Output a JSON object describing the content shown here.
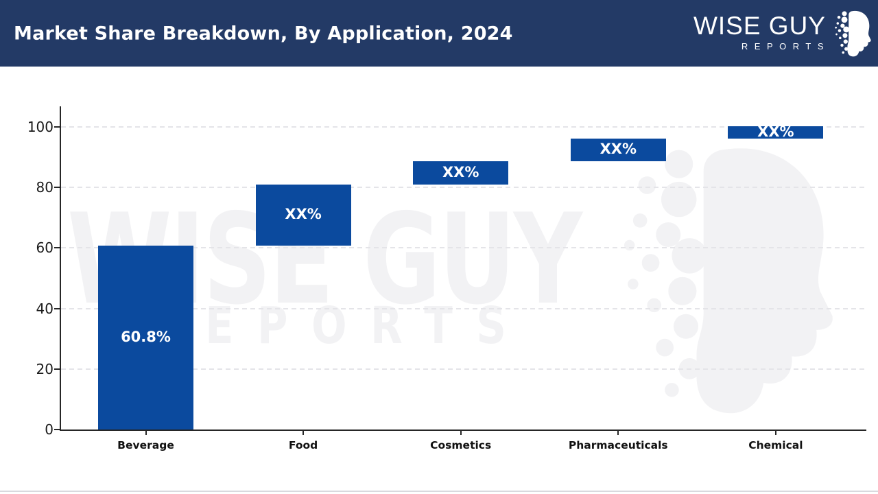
{
  "header": {
    "title": "Market Share Breakdown, By Application, 2024",
    "logo": {
      "line1": "WISE GUY",
      "line2": "REPORTS"
    }
  },
  "watermark": {
    "line1": "WISE GUY",
    "line2": "REPORTS"
  },
  "colors": {
    "header_bg": "#233a66",
    "bar": "#0b4a9e",
    "grid": "#e4e4e8",
    "axis": "#262626",
    "bar_label_text": "#ffffff",
    "tick_label_text": "#1a1a1a",
    "watermark": "#f2f2f4"
  },
  "chart_data": {
    "type": "bar",
    "subtype": "waterfall",
    "title": "Market Share Breakdown, By Application, 2024",
    "xlabel": "",
    "ylabel": "",
    "categories": [
      "Beverage",
      "Food",
      "Cosmetics",
      "Pharmaceuticals",
      "Chemical"
    ],
    "segments": [
      {
        "category": "Beverage",
        "start": 0,
        "end": 60.8,
        "label": "60.8%"
      },
      {
        "category": "Food",
        "start": 60.8,
        "end": 81.0,
        "label": "XX%"
      },
      {
        "category": "Cosmetics",
        "start": 81.0,
        "end": 88.7,
        "label": "XX%"
      },
      {
        "category": "Pharmaceuticals",
        "start": 88.7,
        "end": 96.2,
        "label": "XX%"
      },
      {
        "category": "Chemical",
        "start": 96.2,
        "end": 100.2,
        "label": "XX%"
      }
    ],
    "yticks": [
      0,
      20,
      40,
      60,
      80,
      100
    ],
    "ylim": [
      0,
      107
    ],
    "grid": "horizontal-dashed",
    "legend": "none"
  }
}
